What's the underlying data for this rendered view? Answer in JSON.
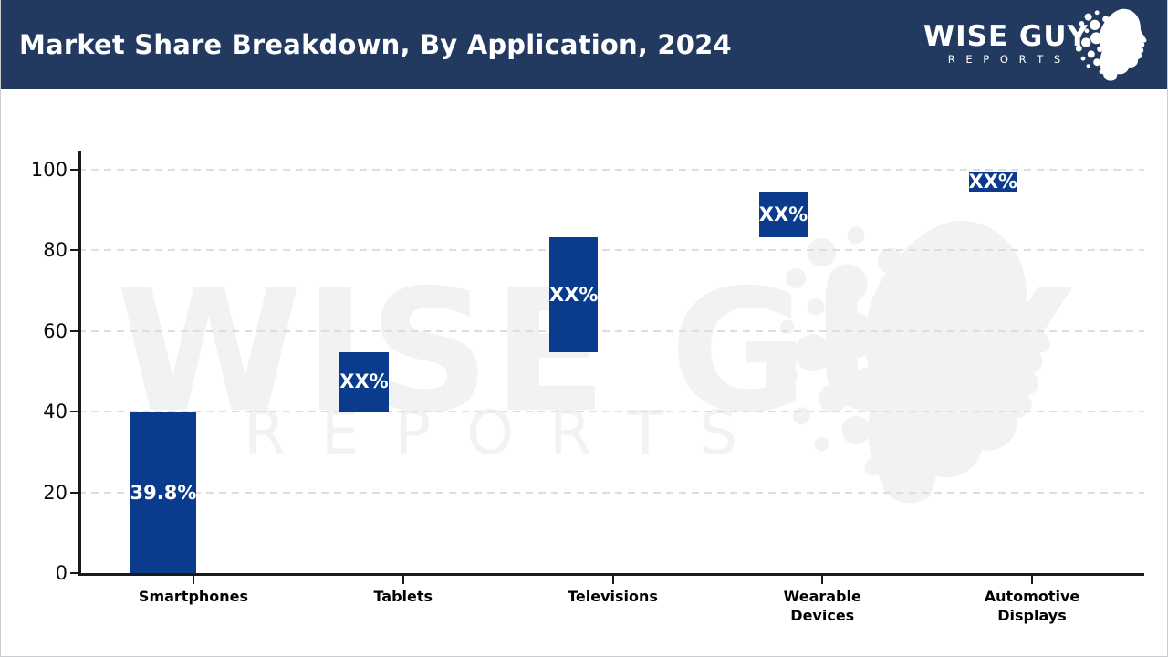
{
  "header": {
    "title": "Market Share Breakdown, By Application, 2024",
    "background_color": "#233a60",
    "logo": {
      "name": "WISE GUY",
      "subname": "R E P O R T S"
    }
  },
  "watermark": {
    "line1": "WISE GUY",
    "line2": "R E P O R T S",
    "color": "#f1f2f4"
  },
  "chart_data": {
    "type": "bar",
    "subtype": "waterfall",
    "title": "Market Share Breakdown, By Application, 2024",
    "categories": [
      "Smartphones",
      "Tablets",
      "Televisions",
      "Wearable Devices",
      "Automotive Displays"
    ],
    "bars": [
      {
        "category": "Smartphones",
        "start": 0,
        "end": 39.8,
        "label": "39.8%"
      },
      {
        "category": "Tablets",
        "start": 39.8,
        "end": 54.8,
        "label": "XX%"
      },
      {
        "category": "Televisions",
        "start": 54.8,
        "end": 83.2,
        "label": "XX%"
      },
      {
        "category": "Wearable Devices",
        "start": 83.2,
        "end": 94.5,
        "label": "XX%"
      },
      {
        "category": "Automotive Displays",
        "start": 94.5,
        "end": 99.6,
        "label": "XX%"
      }
    ],
    "xlabel": "",
    "ylabel": "",
    "ylim": [
      0,
      105
    ],
    "yticks": [
      0,
      20,
      40,
      60,
      80,
      100
    ],
    "grid": "horizontal-dashed",
    "legend": "none",
    "bar_color": "#0a3b8d",
    "bar_label_color": "#ffffff",
    "axis_color": "#1a1a1a"
  }
}
